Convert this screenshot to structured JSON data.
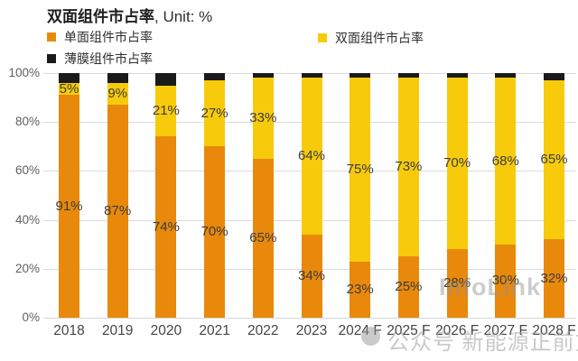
{
  "title": {
    "text": "双面组件市占率",
    "unit": ", Unit: %"
  },
  "legend": {
    "items": [
      {
        "label": "单面组件市占率",
        "color": "#E8890B"
      },
      {
        "label": "双面组件市占率",
        "color": "#F7CB0B"
      },
      {
        "label": "薄膜组件市占率",
        "color": "#1A1A1A"
      }
    ]
  },
  "chart_data": {
    "type": "bar",
    "variant": "stacked-percent",
    "title": "双面组件市占率, Unit: %",
    "categories": [
      "2018",
      "2019",
      "2020",
      "2021",
      "2022",
      "2023",
      "2024 F",
      "2025 F",
      "2026 F",
      "2027 F",
      "2028 F"
    ],
    "series": [
      {
        "name": "单面组件市占率",
        "color": "#E8890B",
        "show_labels": true,
        "values": [
          91,
          87,
          74,
          70,
          65,
          34,
          23,
          25,
          28,
          30,
          32
        ]
      },
      {
        "name": "双面组件市占率",
        "color": "#F7CB0B",
        "show_labels": true,
        "values": [
          5,
          9,
          21,
          27,
          33,
          64,
          75,
          73,
          70,
          68,
          65
        ]
      },
      {
        "name": "薄膜组件市占率",
        "color": "#1A1A1A",
        "show_labels": false,
        "values": [
          4,
          4,
          5,
          3,
          2,
          2,
          2,
          2,
          2,
          2,
          3
        ]
      }
    ],
    "value_suffix": "%",
    "ylim": [
      0,
      100
    ],
    "y_ticks": [
      "0%",
      "20%",
      "40%",
      "60%",
      "80%",
      "100%"
    ],
    "grid": true,
    "legend_position": "top"
  },
  "watermarks": {
    "infolink": "InfoLink",
    "bottom": "公众号 新能源正前方"
  }
}
